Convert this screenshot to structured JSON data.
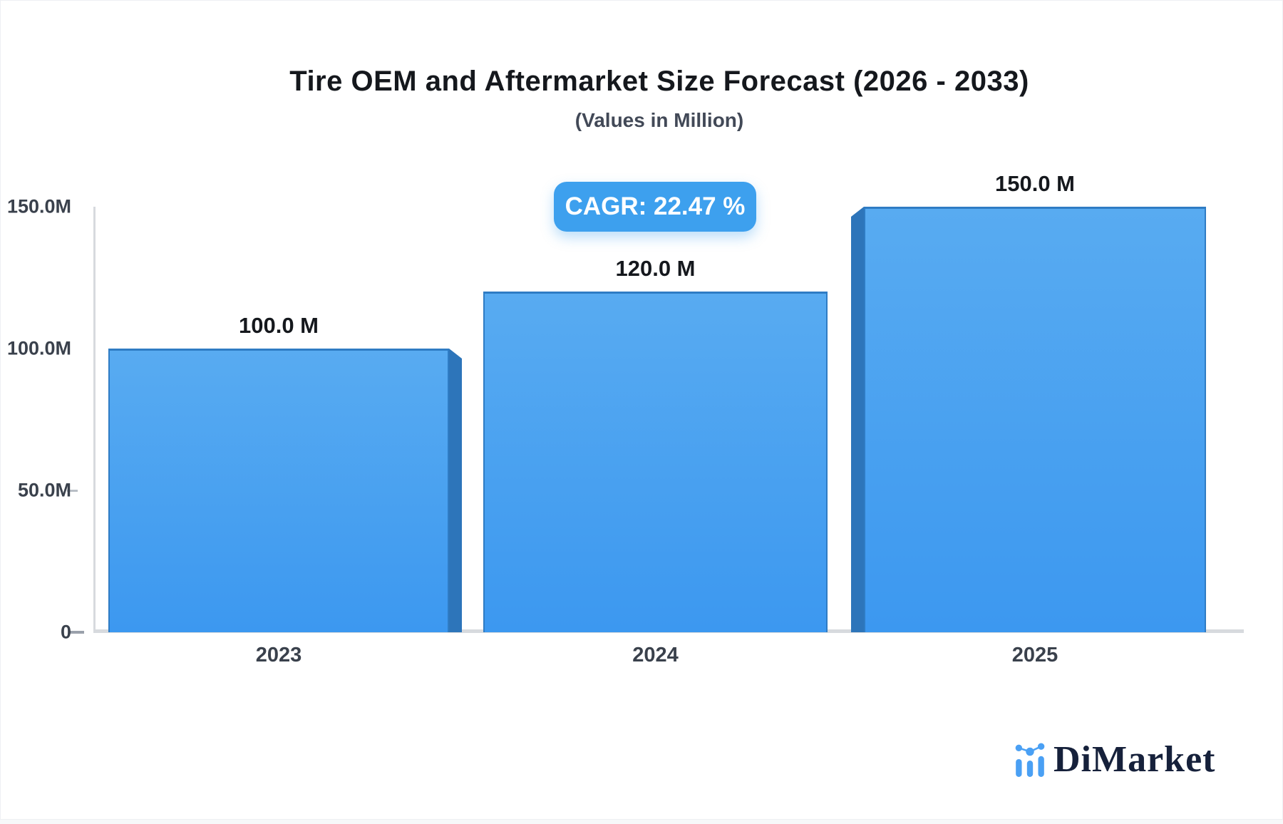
{
  "chart_data": {
    "type": "bar",
    "title": "Tire OEM and Aftermarket Size Forecast (2026 - 2033)",
    "subtitle": "(Values in Million)",
    "cagr_badge": "CAGR: 22.47 %",
    "categories": [
      "2023",
      "2024",
      "2025"
    ],
    "values": [
      100,
      120,
      150
    ],
    "value_labels": [
      "100.0 M",
      "120.0 M",
      "150.0 M"
    ],
    "unit": "Million",
    "ylim": [
      0,
      150
    ],
    "yticks": [
      {
        "value": 150,
        "label": "150.0M"
      },
      {
        "value": 100,
        "label": "100.0M"
      },
      {
        "value": 50,
        "label": "50.0M"
      },
      {
        "value": 0,
        "label": "0"
      }
    ],
    "grid": false,
    "legend": false
  },
  "footer_logo": {
    "brand": "DiMarket",
    "icon": "bar-chart-with-dots-icon"
  },
  "colors": {
    "bar_gradient_top": "#58abf1",
    "bar_gradient_bottom": "#3c98f0",
    "bar_border": "#2f7cc4",
    "bar_side_shadow": "#2d75ba",
    "badge_background": "#3da0ee",
    "badge_text": "#ffffff",
    "axis_line": "#d7dade",
    "axis_text": "#3a414c",
    "title_text": "#15181d",
    "logo_blue": "#4aa0f4",
    "logo_text": "#16213b"
  }
}
